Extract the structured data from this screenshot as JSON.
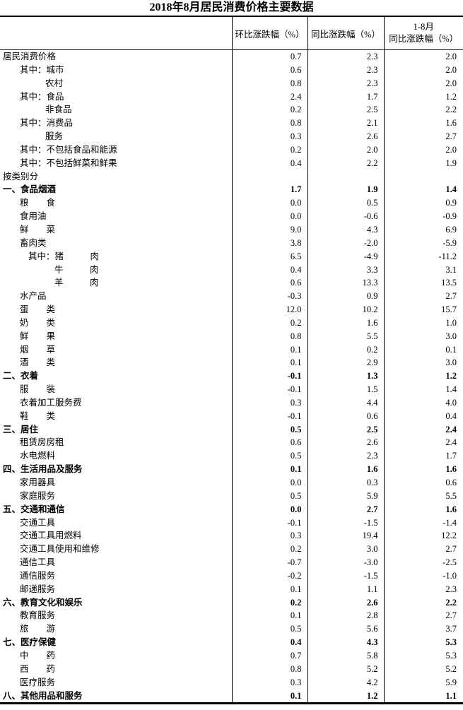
{
  "title": "2018年8月居民消费价格主要数据",
  "table": {
    "header": {
      "label_col": "",
      "mom": "环比涨跌幅（%）",
      "yoy": "同比涨跌幅（%）",
      "ytd_line1": "1-8月",
      "ytd_line2": "同比涨跌幅（%）"
    },
    "rows": [
      {
        "label": "居民消费价格",
        "indent": 0,
        "bold": false,
        "mom": "0.7",
        "yoy": "2.3",
        "ytd": "2.0"
      },
      {
        "label": "其中：城市",
        "indent": 1,
        "bold": false,
        "mom": "0.6",
        "yoy": "2.3",
        "ytd": "2.0"
      },
      {
        "label": "农村",
        "indent": 3,
        "bold": false,
        "mom": "0.8",
        "yoy": "2.3",
        "ytd": "2.0"
      },
      {
        "label": "其中：食品",
        "indent": 1,
        "bold": false,
        "mom": "2.4",
        "yoy": "1.7",
        "ytd": "1.2"
      },
      {
        "label": "非食品",
        "indent": 3,
        "bold": false,
        "mom": "0.2",
        "yoy": "2.5",
        "ytd": "2.2"
      },
      {
        "label": "其中：消费品",
        "indent": 1,
        "bold": false,
        "mom": "0.8",
        "yoy": "2.1",
        "ytd": "1.6"
      },
      {
        "label": "服务",
        "indent": 3,
        "bold": false,
        "mom": "0.3",
        "yoy": "2.6",
        "ytd": "2.7"
      },
      {
        "label": "其中：不包括食品和能源",
        "indent": 1,
        "bold": false,
        "mom": "0.2",
        "yoy": "2.0",
        "ytd": "2.0"
      },
      {
        "label": "其中：不包括鲜菜和鲜果",
        "indent": 1,
        "bold": false,
        "mom": "0.4",
        "yoy": "2.2",
        "ytd": "1.9"
      },
      {
        "label": "按类别分",
        "indent": 0,
        "bold": false,
        "mom": "",
        "yoy": "",
        "ytd": ""
      },
      {
        "label": "一、食品烟酒",
        "indent": 0,
        "bold": true,
        "mom": "1.7",
        "yoy": "1.9",
        "ytd": "1.4"
      },
      {
        "label": "粮　　食",
        "indent": 1,
        "bold": false,
        "mom": "0.0",
        "yoy": "0.5",
        "ytd": "0.9"
      },
      {
        "label": "食用油",
        "indent": 1,
        "bold": false,
        "mom": "0.0",
        "yoy": "-0.6",
        "ytd": "-0.9"
      },
      {
        "label": "鲜　　菜",
        "indent": 1,
        "bold": false,
        "mom": "9.0",
        "yoy": "4.3",
        "ytd": "6.9"
      },
      {
        "label": "畜肉类",
        "indent": 1,
        "bold": false,
        "mom": "3.8",
        "yoy": "-2.0",
        "ytd": "-5.9"
      },
      {
        "label": "其中：猪　　　肉",
        "indent": 2,
        "bold": false,
        "mom": "6.5",
        "yoy": "-4.9",
        "ytd": "-11.2"
      },
      {
        "label": "牛　　　肉",
        "indent": 4,
        "bold": false,
        "mom": "0.4",
        "yoy": "3.3",
        "ytd": "3.1"
      },
      {
        "label": "羊　　　肉",
        "indent": 4,
        "bold": false,
        "mom": "0.6",
        "yoy": "13.3",
        "ytd": "13.5"
      },
      {
        "label": "水产品",
        "indent": 1,
        "bold": false,
        "mom": "-0.3",
        "yoy": "0.9",
        "ytd": "2.7"
      },
      {
        "label": "蛋　　类",
        "indent": 1,
        "bold": false,
        "mom": "12.0",
        "yoy": "10.2",
        "ytd": "15.7"
      },
      {
        "label": "奶　　类",
        "indent": 1,
        "bold": false,
        "mom": "0.2",
        "yoy": "1.6",
        "ytd": "1.0"
      },
      {
        "label": "鲜　　果",
        "indent": 1,
        "bold": false,
        "mom": "0.8",
        "yoy": "5.5",
        "ytd": "3.0"
      },
      {
        "label": "烟　　草",
        "indent": 1,
        "bold": false,
        "mom": "0.1",
        "yoy": "0.2",
        "ytd": "0.1"
      },
      {
        "label": "酒　　类",
        "indent": 1,
        "bold": false,
        "mom": "0.1",
        "yoy": "2.9",
        "ytd": "3.0"
      },
      {
        "label": "二、衣着",
        "indent": 0,
        "bold": true,
        "mom": "-0.1",
        "yoy": "1.3",
        "ytd": "1.2"
      },
      {
        "label": "服　　装",
        "indent": 1,
        "bold": false,
        "mom": "-0.1",
        "yoy": "1.5",
        "ytd": "1.4"
      },
      {
        "label": "衣着加工服务费",
        "indent": 1,
        "bold": false,
        "mom": "0.3",
        "yoy": "4.4",
        "ytd": "4.0"
      },
      {
        "label": "鞋　　类",
        "indent": 1,
        "bold": false,
        "mom": "-0.1",
        "yoy": "0.6",
        "ytd": "0.4"
      },
      {
        "label": "三、居住",
        "indent": 0,
        "bold": true,
        "mom": "0.5",
        "yoy": "2.5",
        "ytd": "2.4"
      },
      {
        "label": "租赁房房租",
        "indent": 1,
        "bold": false,
        "mom": "0.6",
        "yoy": "2.6",
        "ytd": "2.4"
      },
      {
        "label": "水电燃料",
        "indent": 1,
        "bold": false,
        "mom": "0.5",
        "yoy": "2.3",
        "ytd": "1.7"
      },
      {
        "label": "四、生活用品及服务",
        "indent": 0,
        "bold": true,
        "mom": "0.1",
        "yoy": "1.6",
        "ytd": "1.6"
      },
      {
        "label": "家用器具",
        "indent": 1,
        "bold": false,
        "mom": "0.0",
        "yoy": "0.3",
        "ytd": "0.6"
      },
      {
        "label": "家庭服务",
        "indent": 1,
        "bold": false,
        "mom": "0.5",
        "yoy": "5.9",
        "ytd": "5.5"
      },
      {
        "label": "五、交通和通信",
        "indent": 0,
        "bold": true,
        "mom": "0.0",
        "yoy": "2.7",
        "ytd": "1.6"
      },
      {
        "label": "交通工具",
        "indent": 1,
        "bold": false,
        "mom": "-0.1",
        "yoy": "-1.5",
        "ytd": "-1.4"
      },
      {
        "label": "交通工具用燃料",
        "indent": 1,
        "bold": false,
        "mom": "0.3",
        "yoy": "19.4",
        "ytd": "12.2"
      },
      {
        "label": "交通工具使用和维修",
        "indent": 1,
        "bold": false,
        "mom": "0.2",
        "yoy": "3.0",
        "ytd": "2.7"
      },
      {
        "label": "通信工具",
        "indent": 1,
        "bold": false,
        "mom": "-0.7",
        "yoy": "-3.0",
        "ytd": "-2.5"
      },
      {
        "label": "通信服务",
        "indent": 1,
        "bold": false,
        "mom": "-0.2",
        "yoy": "-1.5",
        "ytd": "-1.0"
      },
      {
        "label": "邮递服务",
        "indent": 1,
        "bold": false,
        "mom": "0.1",
        "yoy": "1.1",
        "ytd": "2.3"
      },
      {
        "label": "六、教育文化和娱乐",
        "indent": 0,
        "bold": true,
        "mom": "0.2",
        "yoy": "2.6",
        "ytd": "2.2"
      },
      {
        "label": "教育服务",
        "indent": 1,
        "bold": false,
        "mom": "0.1",
        "yoy": "2.8",
        "ytd": "2.7"
      },
      {
        "label": "旅　　游",
        "indent": 1,
        "bold": false,
        "mom": "0.5",
        "yoy": "5.6",
        "ytd": "3.7"
      },
      {
        "label": "七、医疗保健",
        "indent": 0,
        "bold": true,
        "mom": "0.4",
        "yoy": "4.3",
        "ytd": "5.3"
      },
      {
        "label": "中　　药",
        "indent": 1,
        "bold": false,
        "mom": "0.7",
        "yoy": "5.8",
        "ytd": "5.3"
      },
      {
        "label": "西　　药",
        "indent": 1,
        "bold": false,
        "mom": "0.8",
        "yoy": "5.2",
        "ytd": "5.2"
      },
      {
        "label": "医疗服务",
        "indent": 1,
        "bold": false,
        "mom": "0.3",
        "yoy": "4.2",
        "ytd": "5.9"
      },
      {
        "label": "八、其他用品和服务",
        "indent": 0,
        "bold": true,
        "mom": "0.1",
        "yoy": "1.2",
        "ytd": "1.1"
      }
    ]
  }
}
